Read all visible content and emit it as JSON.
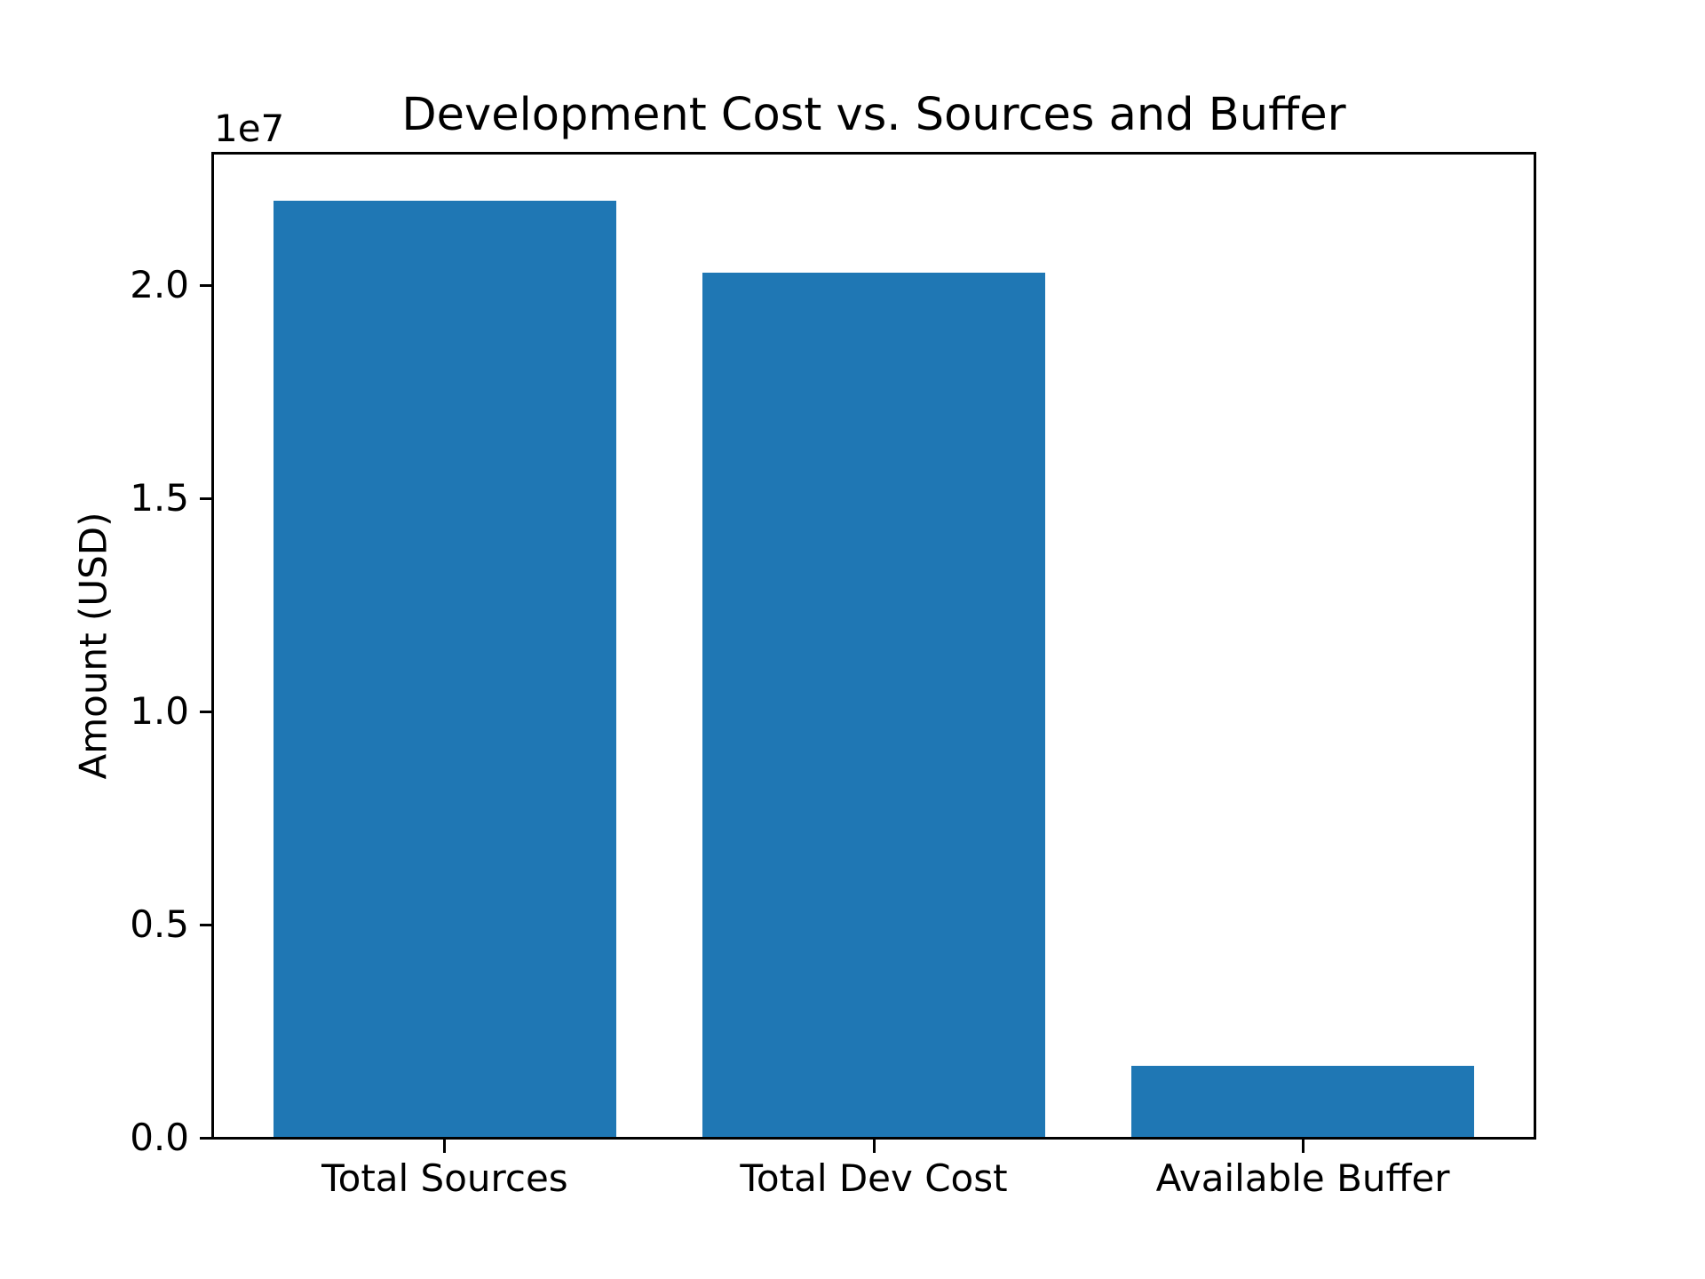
{
  "chart_data": {
    "type": "bar",
    "title": "Development Cost vs. Sources and Buffer",
    "xlabel": "",
    "ylabel": "Amount (USD)",
    "y_axis_offset_label": "1e7",
    "categories": [
      "Total Sources",
      "Total Dev Cost",
      "Available Buffer"
    ],
    "values": [
      22000000,
      20300000,
      1700000
    ],
    "bar_color": "#1f77b4",
    "ylim": [
      0,
      23100000
    ],
    "y_ticks": {
      "values": [
        0,
        5000000,
        10000000,
        15000000,
        20000000
      ],
      "labels": [
        "0.0",
        "0.5",
        "1.0",
        "1.5",
        "2.0"
      ]
    },
    "grid": false,
    "legend": null,
    "plot_background": "#ffffff",
    "axes_color": "#000000"
  }
}
